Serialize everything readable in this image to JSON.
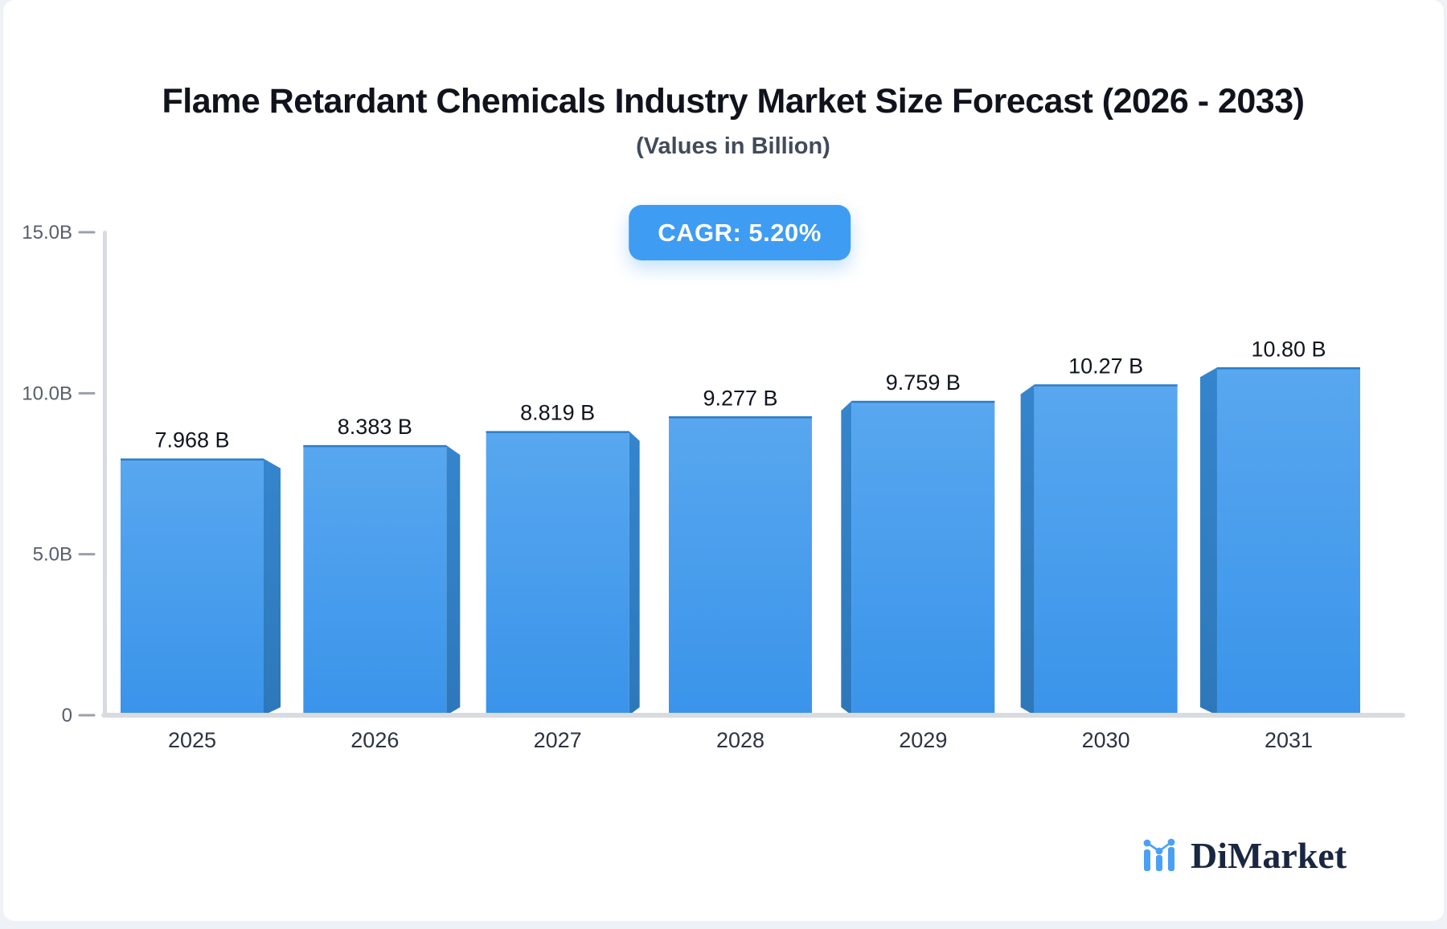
{
  "page": {
    "background": "#eef1f5",
    "card_background": "#ffffff"
  },
  "header": {
    "title": "Flame Retardant Chemicals Industry Market Size Forecast (2026 - 2033)",
    "subtitle": "(Values in Billion)",
    "cagr_badge_label": "CAGR: 5.20%",
    "badge_color": "#3e9cf3"
  },
  "chart_data": {
    "type": "bar",
    "title": "Flame Retardant Chemicals Industry Market Size Forecast (2026 - 2033)",
    "subtitle": "(Values in Billion)",
    "categories": [
      "2025",
      "2026",
      "2027",
      "2028",
      "2029",
      "2030",
      "2031"
    ],
    "values": [
      7.968,
      8.383,
      8.819,
      9.277,
      9.759,
      10.27,
      10.8
    ],
    "value_labels": [
      "7.968 B",
      "8.383 B",
      "8.819 B",
      "9.277 B",
      "9.759 B",
      "10.27 B",
      "10.80 B"
    ],
    "xlabel": "",
    "ylabel": "",
    "ylim": [
      0,
      15
    ],
    "yticks": [
      {
        "value": 15,
        "label": "15.0B"
      },
      {
        "value": 10,
        "label": "10.0B"
      },
      {
        "value": 5,
        "label": "5.0B"
      },
      {
        "value": 0,
        "label": "0"
      }
    ],
    "grid": false,
    "legend": "none",
    "colors": {
      "bar_front_top": "#58a7ef",
      "bar_front_bottom": "#3a94ea",
      "bar_side_top": "#3585cd",
      "bar_side_bottom": "#2d78ba",
      "bar_top_edge": "#2d7ec6",
      "axis_line": "#d8dbdf",
      "tick_dash": "#9aa1ab"
    },
    "depth3d": {
      "sides": [
        "right",
        "right",
        "right",
        "none",
        "left",
        "left",
        "left"
      ],
      "widths": [
        21,
        17,
        13,
        0,
        13,
        17,
        21
      ],
      "top_drop": 12,
      "bottom_rise": 10
    }
  },
  "footer": {
    "logo_text": "DiMarket",
    "logo_icon": "bar-chart-with-trend-line-icon",
    "logo_icon_color": "#4aa0f4",
    "logo_text_color": "#1a2742"
  }
}
